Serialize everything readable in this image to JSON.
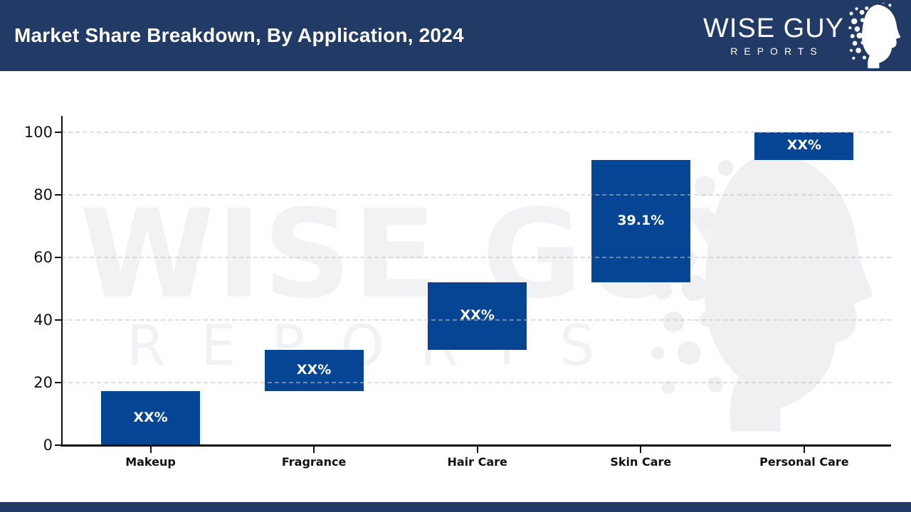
{
  "header": {
    "title": "Market Share Breakdown, By Application, 2024",
    "logo_line1": "WISE GUY",
    "logo_line2": "REPORTS",
    "bg_color": "#213a66"
  },
  "watermark": {
    "line1": "WISE GUY",
    "line2": "REPORTS"
  },
  "footer": {
    "bg_color": "#213a66"
  },
  "chart_data": {
    "type": "bar",
    "subtype": "waterfall",
    "title": "Market Share Breakdown, By Application, 2024",
    "categories": [
      "Makeup",
      "Fragrance",
      "Hair Care",
      "Skin Care",
      "Personal Care"
    ],
    "segments": [
      {
        "category": "Makeup",
        "start": 0,
        "end": 17.3,
        "label": "XX%"
      },
      {
        "category": "Fragrance",
        "start": 17.3,
        "end": 30.5,
        "label": "XX%"
      },
      {
        "category": "Hair Care",
        "start": 30.5,
        "end": 52.1,
        "label": "XX%"
      },
      {
        "category": "Skin Care",
        "start": 52.1,
        "end": 91.2,
        "label": "39.1%"
      },
      {
        "category": "Personal Care",
        "start": 91.2,
        "end": 100,
        "label": "XX%"
      }
    ],
    "yticks": [
      0,
      20,
      40,
      60,
      80,
      100
    ],
    "ylim": [
      0,
      105
    ],
    "xlabel": "",
    "ylabel": "",
    "grid": true,
    "legend": "none",
    "bar_color": "#064593",
    "label_color": "#ffffff"
  }
}
